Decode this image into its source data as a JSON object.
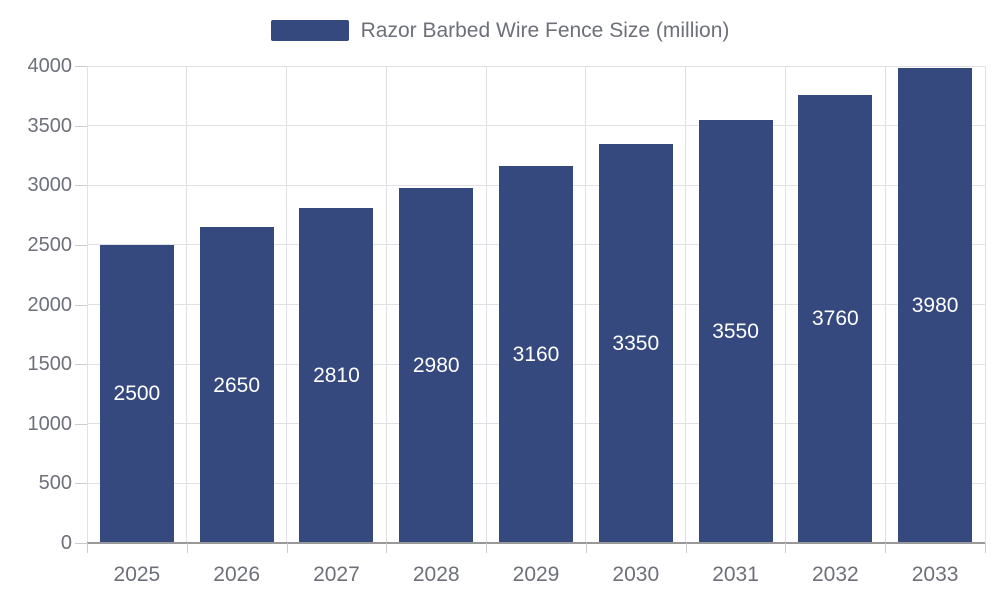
{
  "legend": {
    "label": "Razor Barbed Wire Fence Size (million)"
  },
  "chart_data": {
    "type": "bar",
    "title": "Razor Barbed Wire Fence Size (million)",
    "categories": [
      "2025",
      "2026",
      "2027",
      "2028",
      "2029",
      "2030",
      "2031",
      "2032",
      "2033"
    ],
    "values": [
      2500,
      2650,
      2810,
      2980,
      3160,
      3350,
      3550,
      3760,
      3980
    ],
    "series": [
      {
        "name": "Razor Barbed Wire Fence Size (million)",
        "values": [
          2500,
          2650,
          2810,
          2980,
          3160,
          3350,
          3550,
          3760,
          3980
        ]
      }
    ],
    "xlabel": "",
    "ylabel": "",
    "ylim": [
      0,
      4000
    ],
    "y_ticks": [
      0,
      500,
      1000,
      1500,
      2000,
      2500,
      3000,
      3500,
      4000
    ],
    "grid": true,
    "legend_position": "top",
    "data_labels_inside_bars": true,
    "colors": {
      "bar": "#36497e",
      "bar_label": "#ffffff",
      "axis_text": "#6e7079",
      "grid_line": "#e0e0e6",
      "axis_line": "#999999",
      "tick_mark": "#cccccc",
      "background": "#ffffff"
    }
  }
}
